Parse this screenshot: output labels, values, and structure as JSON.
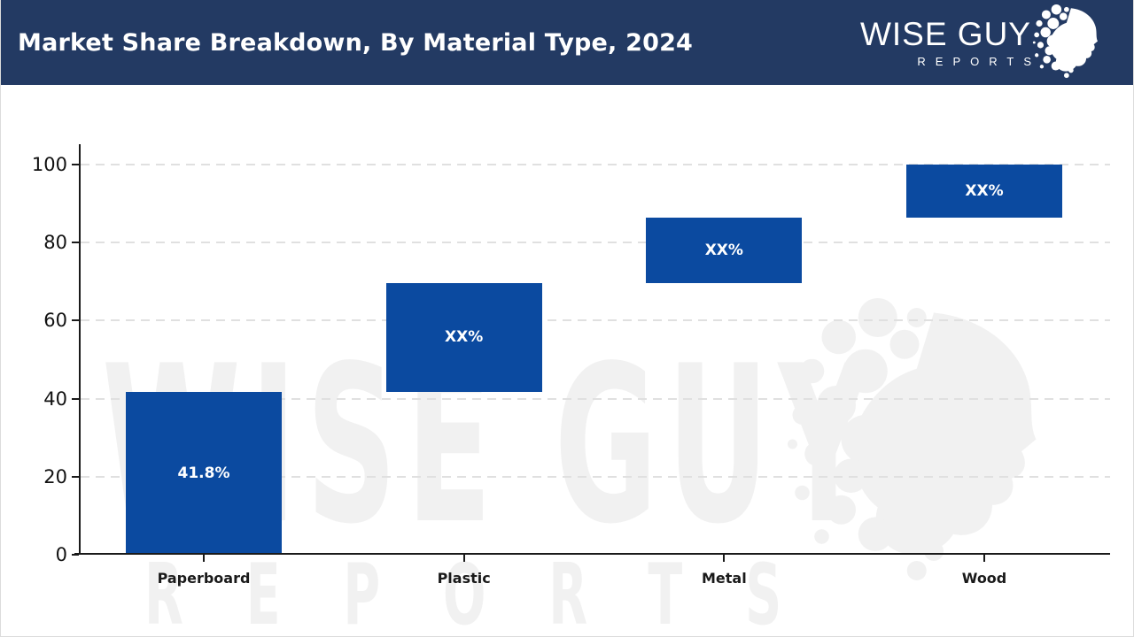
{
  "header": {
    "title": "Market Share Breakdown, By Material Type, 2024",
    "logo": {
      "wordmark": "WISE GUY",
      "wordmark_sub": "REPORTS"
    }
  },
  "watermark": {
    "line1": "WISE GUY",
    "line2": "REPORTS"
  },
  "colors": {
    "header_bg": "#233a63",
    "bar": "#0b4aa0",
    "bar_label": "#ffffff",
    "grid": "#e0e0e0",
    "axis": "#1a1a1a",
    "watermark": "#f1f1f1"
  },
  "chart_data": {
    "type": "bar",
    "subtype": "waterfall",
    "title": "Market Share Breakdown, By Material Type, 2024",
    "categories": [
      "Paperboard",
      "Plastic",
      "Metal",
      "Wood"
    ],
    "segments": [
      {
        "category": "Paperboard",
        "start": 0,
        "end": 41.8,
        "label": "41.8%"
      },
      {
        "category": "Plastic",
        "start": 41.8,
        "end": 69.6,
        "label": "XX%"
      },
      {
        "category": "Metal",
        "start": 69.6,
        "end": 86.4,
        "label": "XX%"
      },
      {
        "category": "Wood",
        "start": 86.4,
        "end": 100,
        "label": "XX%"
      }
    ],
    "values_shown": [
      "41.8%",
      "XX%",
      "XX%",
      "XX%"
    ],
    "ylim": [
      0,
      100
    ],
    "yticks": [
      0,
      20,
      40,
      60,
      80,
      100
    ],
    "xlabel": "",
    "ylabel": "",
    "grid": "horizontal-dashed",
    "legend": false
  }
}
